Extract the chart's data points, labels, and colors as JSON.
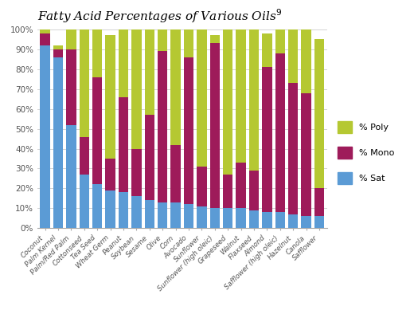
{
  "title": "Fatty Acid Percentages of Various Oils",
  "title_superscript": "9",
  "categories": [
    "Coconut",
    "Palm Kernel",
    "Palm/Red Palm",
    "Cottonseed",
    "Tea Seed",
    "Wheat Germ",
    "Peanut",
    "Soybean",
    "Sesame",
    "Olive",
    "Corn",
    "Avocado",
    "Sunflower",
    "Sunflower (high oleic)",
    "Grapeseed",
    "Walnut",
    "Flaxseed",
    "Almond",
    "Safflower (high oleic)",
    "Hazelnut",
    "Canola",
    "Safflower"
  ],
  "sat": [
    92,
    86,
    52,
    27,
    22,
    19,
    18,
    16,
    14,
    13,
    13,
    12,
    11,
    10,
    10,
    10,
    9,
    8,
    8,
    7,
    6,
    6
  ],
  "mono": [
    6,
    4,
    38,
    19,
    54,
    16,
    48,
    24,
    43,
    76,
    29,
    74,
    20,
    83,
    17,
    23,
    20,
    73,
    80,
    66,
    62,
    14
  ],
  "poly": [
    2,
    2,
    10,
    54,
    24,
    62,
    34,
    60,
    43,
    11,
    58,
    14,
    69,
    4,
    73,
    67,
    72,
    17,
    13,
    28,
    32,
    75
  ],
  "color_sat": "#5b9bd5",
  "color_mono": "#9e1b5a",
  "color_poly": "#b5c832",
  "figsize": [
    5.2,
    4.09
  ],
  "dpi": 100
}
